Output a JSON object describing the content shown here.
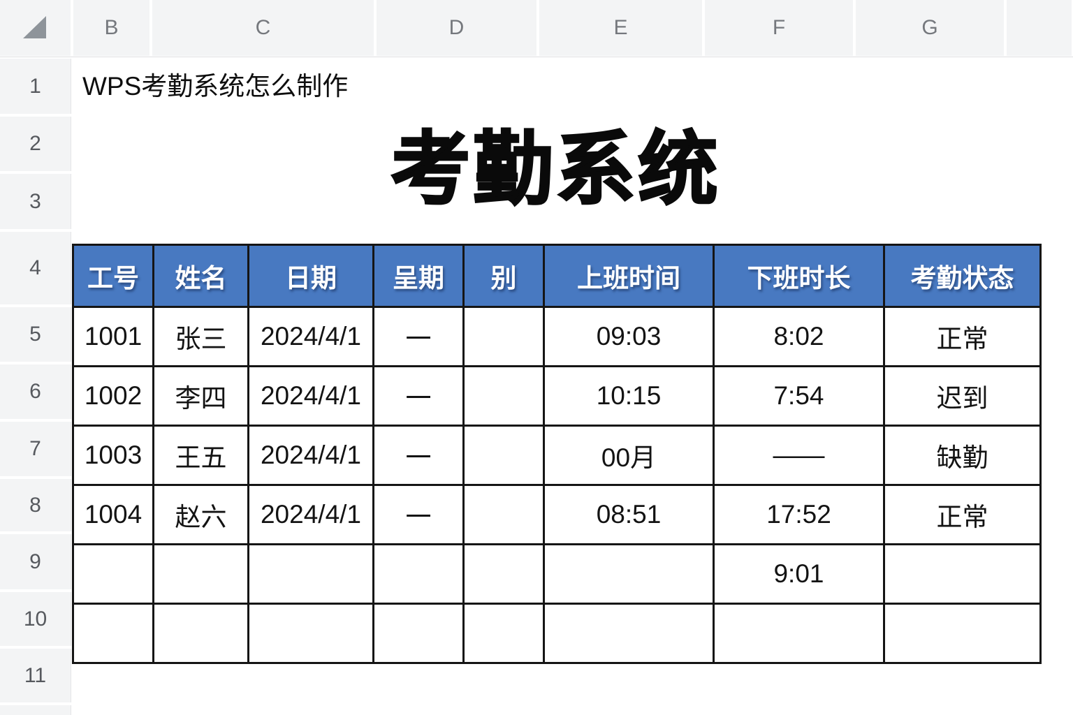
{
  "colors": {
    "header_fill": "#4879c1",
    "header_text": "#ffffff",
    "grid_border": "#151515",
    "chrome_bg": "#f3f4f5",
    "chrome_text": "#75787d"
  },
  "column_headers": [
    "B",
    "C",
    "D",
    "E",
    "F",
    "G",
    ""
  ],
  "row_headers": [
    "1",
    "2",
    "3",
    "4",
    "5",
    "6",
    "7",
    "8",
    "9",
    "10",
    "11",
    ""
  ],
  "cells": {
    "b1": "WPS考勤系统怎么制作",
    "title": "考勤系统"
  },
  "table": {
    "headers": [
      "工号",
      "姓名",
      "日期",
      "呈期",
      "别",
      "上班时间",
      "下班时长",
      "考勤状态"
    ],
    "rows": [
      [
        "1001",
        "张三",
        "2024/4/1",
        "一",
        "",
        "09:03",
        "8:02",
        "正常"
      ],
      [
        "1002",
        "李四",
        "2024/4/1",
        "一",
        "",
        "10:15",
        "7:54",
        "迟到"
      ],
      [
        "1003",
        "王五",
        "2024/4/1",
        "一",
        "",
        "00月",
        "——",
        "缺勤"
      ],
      [
        "1004",
        "赵六",
        "2024/4/1",
        "一",
        "",
        "08:51",
        "17:52",
        "正常"
      ],
      [
        "",
        "",
        "",
        "",
        "",
        "",
        "9:01",
        ""
      ],
      [
        "",
        "",
        "",
        "",
        "",
        "",
        "",
        ""
      ]
    ]
  }
}
